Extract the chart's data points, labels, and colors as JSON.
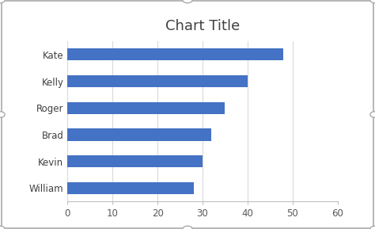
{
  "title": "Chart Title",
  "categories": [
    "William",
    "Kevin",
    "Brad",
    "Roger",
    "Kelly",
    "Kate"
  ],
  "values": [
    28,
    30,
    32,
    35,
    40,
    48
  ],
  "bar_color": "#4472C4",
  "xlim": [
    0,
    60
  ],
  "xticks": [
    0,
    10,
    20,
    30,
    40,
    50,
    60
  ],
  "title_fontsize": 13,
  "label_fontsize": 8.5,
  "tick_fontsize": 8.5,
  "background_color": "#FFFFFF",
  "outer_bg_color": "#F2F2F2",
  "grid_color": "#D9D9D9",
  "border_color": "#BFBFBF",
  "outer_border_color": "#AAAAAA",
  "bar_height": 0.45,
  "figsize": [
    4.74,
    2.89
  ],
  "dpi": 100
}
